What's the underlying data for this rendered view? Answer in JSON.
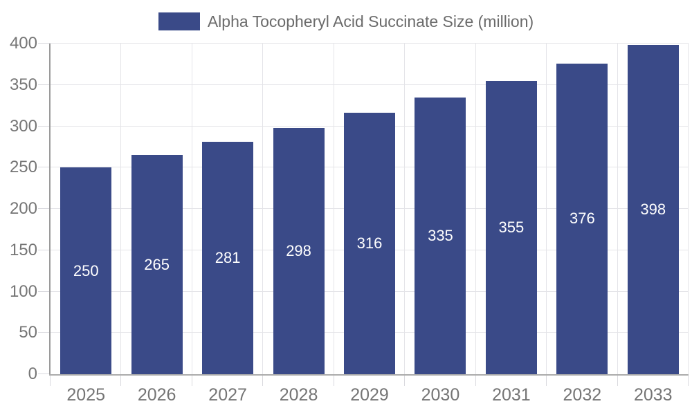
{
  "legend": {
    "label": "Alpha Tocopheryl Acid Succinate Size (million)"
  },
  "chart_data": {
    "type": "bar",
    "title": "Alpha Tocopheryl Acid Succinate Size (million)",
    "series_name": "Alpha Tocopheryl Acid Succinate Size (million)",
    "categories": [
      "2025",
      "2026",
      "2027",
      "2028",
      "2029",
      "2030",
      "2031",
      "2032",
      "2033"
    ],
    "values": [
      250,
      265,
      281,
      298,
      316,
      335,
      355,
      376,
      398
    ],
    "xlabel": "",
    "ylabel": "",
    "ylim": [
      0,
      400
    ],
    "yticks": [
      0,
      50,
      100,
      150,
      200,
      250,
      300,
      350,
      400
    ],
    "grid": true,
    "legend_position": "top-center",
    "bar_value_labels": "inside-middle"
  },
  "colors": {
    "bar": "#3A4A88",
    "bar_label": "#ffffff",
    "grid_line": "#e4e4e8",
    "tick_line": "#d9d9de",
    "y_axis_line": "#9a9a9a",
    "x_axis_line": "#ababab",
    "axis_text": "#757575",
    "legend_text": "#6b6b6b",
    "background": "#ffffff"
  }
}
